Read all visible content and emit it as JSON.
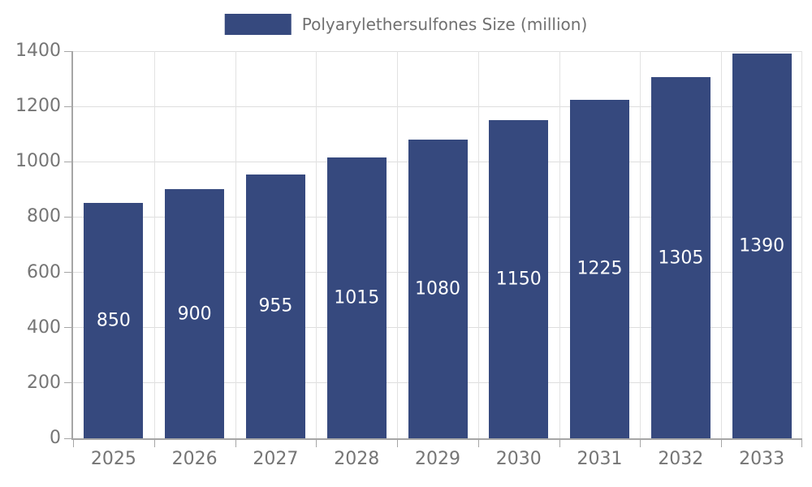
{
  "chart_data": {
    "type": "bar",
    "legend_label": "Polyarylethersulfones Size (million)",
    "legend_position": "top",
    "categories": [
      "2025",
      "2026",
      "2027",
      "2028",
      "2029",
      "2030",
      "2031",
      "2032",
      "2033"
    ],
    "values": [
      850,
      900,
      955,
      1015,
      1080,
      1150,
      1225,
      1305,
      1390
    ],
    "title": "",
    "xlabel": "",
    "ylabel": "",
    "ylim": [
      0,
      1400
    ],
    "yticks": [
      0,
      200,
      400,
      600,
      800,
      1000,
      1200,
      1400
    ],
    "grid": true,
    "bar_labels_inside": true,
    "colors": {
      "bar": "#36497E",
      "bar_label": "#FFFFFF",
      "axis_line": "#A6A6A6",
      "tick_text": "#757575",
      "legend_text": "#707070",
      "gridline": "#DEDEDE",
      "background": "#FFFFFF"
    }
  }
}
